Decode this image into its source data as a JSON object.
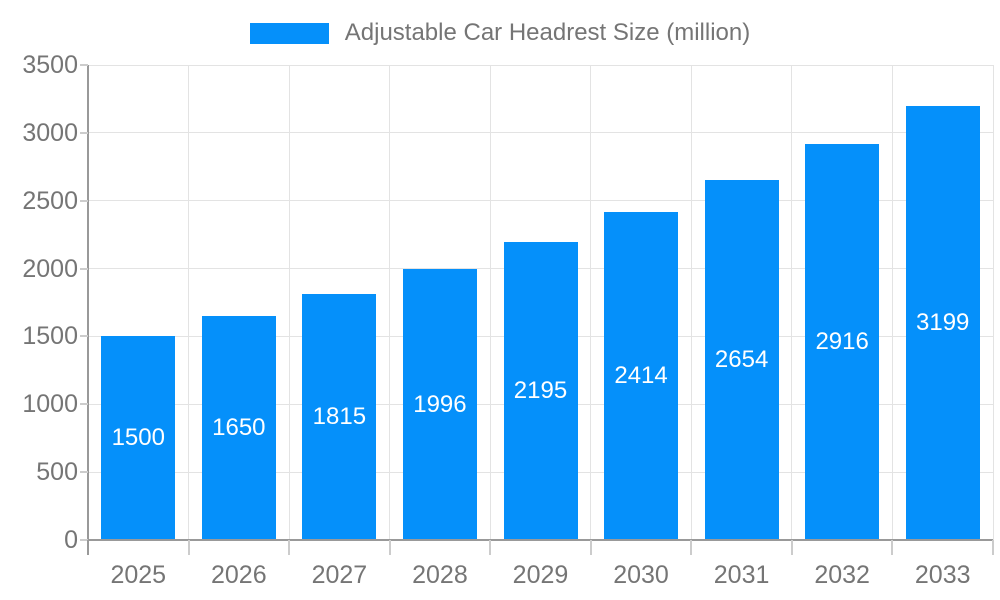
{
  "legend": {
    "label": "Adjustable Car Headrest Size (million)"
  },
  "chart_data": {
    "type": "bar",
    "title": "Adjustable Car Headrest Size (million)",
    "categories": [
      "2025",
      "2026",
      "2027",
      "2028",
      "2029",
      "2030",
      "2031",
      "2032",
      "2033"
    ],
    "series": [
      {
        "name": "Adjustable Car Headrest Size (million)",
        "values": [
          1500,
          1650,
          1815,
          1996,
          2195,
          2414,
          2654,
          2916,
          3199
        ]
      }
    ],
    "value_labels": [
      "1500",
      "1650",
      "1815",
      "1996",
      "2195",
      "2414",
      "2654",
      "2916",
      "3199"
    ],
    "xlabel": "",
    "ylabel": "",
    "ylim": [
      0,
      3500
    ],
    "yticks": [
      0,
      500,
      1000,
      1500,
      2000,
      2500,
      3000,
      3500
    ],
    "grid": true,
    "legend_position": "top-center",
    "bar_label_position": "inside-center",
    "colors": {
      "bar": "#0590fa",
      "grid": "#e3e3e3",
      "axis": "#999999",
      "tick": "#cccccc",
      "tick_label": "#757575",
      "bar_label": "#ffffff",
      "background": "#ffffff"
    }
  }
}
